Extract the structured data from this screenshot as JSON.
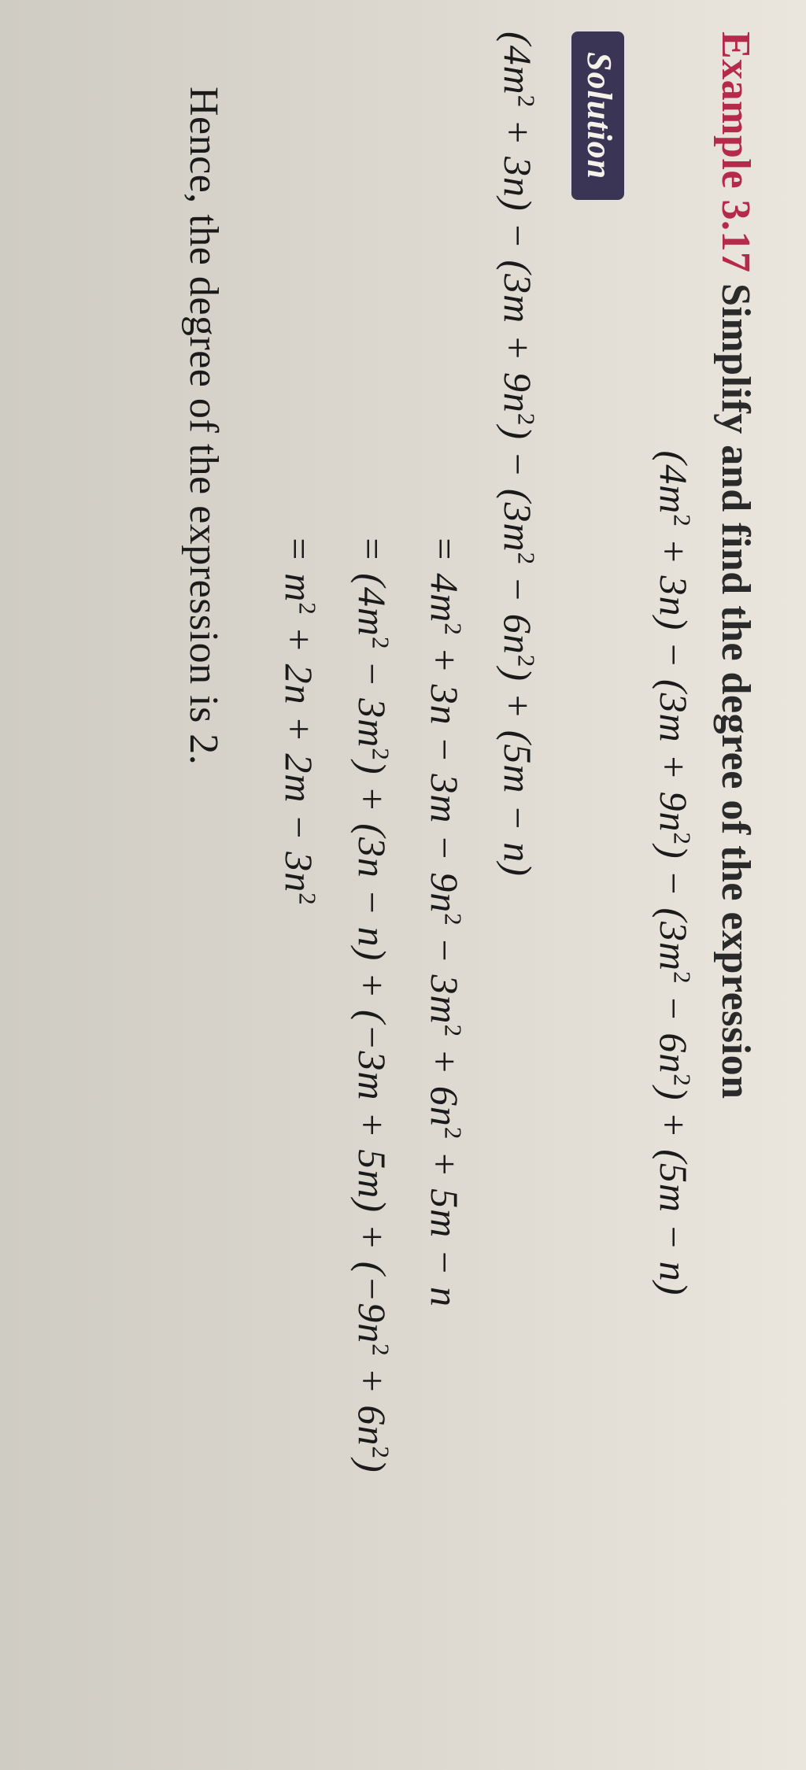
{
  "example": {
    "number": "Example 3.17",
    "prompt": "Simplify and find the degree of the expression"
  },
  "expression": "(4m² + 3n) − (3m + 9n²) − (3m² − 6n²) + (5m − n)",
  "solution_label": "Solution",
  "work": {
    "line1_left": "(4m² + 3n) − (3m + 9n²) − (3m² − 6n²) + (5m − n)",
    "line2": "= 4m² + 3n − 3m − 9n² − 3m² + 6n² + 5m − n",
    "line3": "= (4m² − 3m²) + (3n − n) + (−3m + 5m) + (−9n² + 6n²)",
    "line4": "= m² + 2n + 2m − 3n²"
  },
  "conclusion": "Hence, the degree of the expression is 2.",
  "colors": {
    "accent": "#b52a4a",
    "badge_bg": "#3a3555",
    "badge_fg": "#f5f2ea",
    "text": "#1a1a1a",
    "page_bg_top": "#eae6de",
    "page_bg_bottom": "#cfccc3"
  },
  "typography": {
    "heading_fontsize_pt": 39,
    "body_fontsize_pt": 37,
    "expr_fontsize_pt": 37,
    "font_family": "Georgia / Times-like serif"
  }
}
